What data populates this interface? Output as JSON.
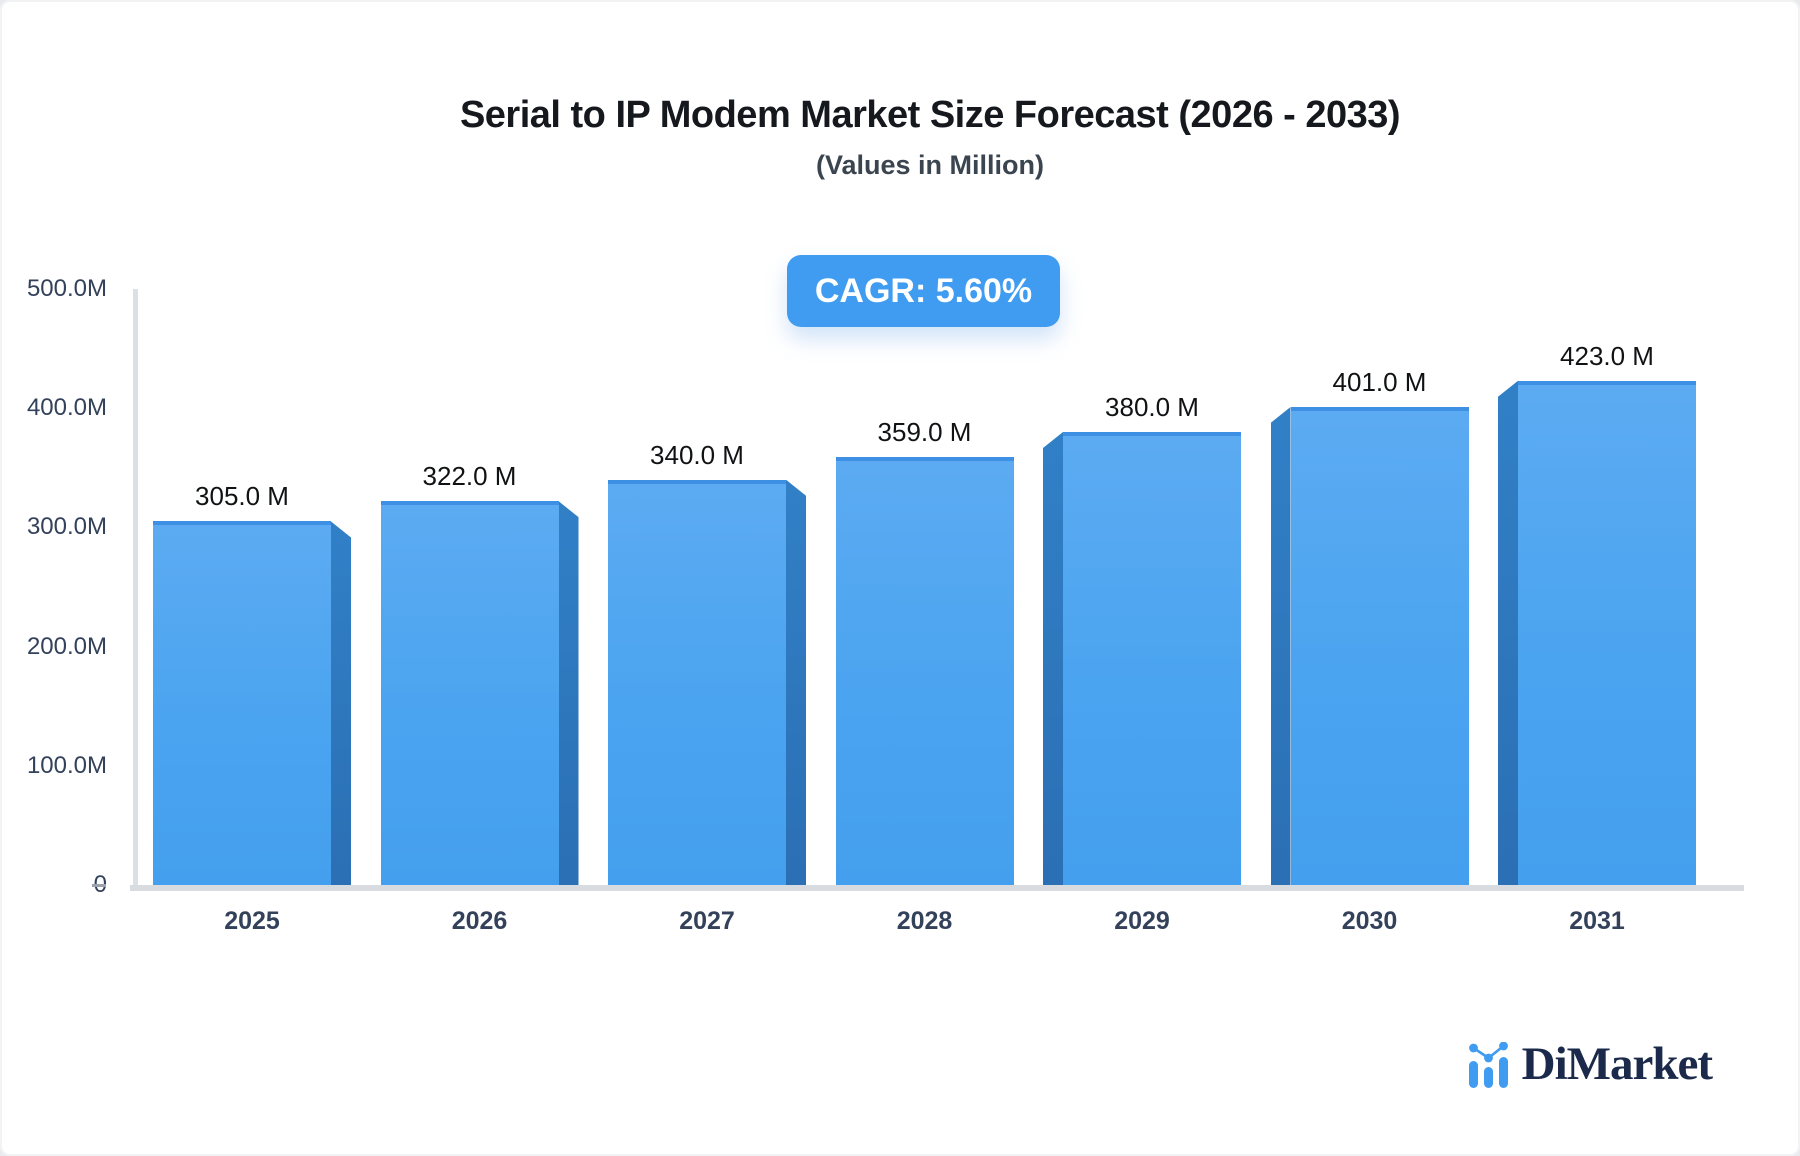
{
  "header": {
    "title": "Serial to IP Modem Market Size Forecast (2026 - 2033)",
    "subtitle": "(Values in Million)",
    "cagr_badge": "CAGR: 5.60%"
  },
  "chart_data": {
    "type": "bar",
    "title": "Serial to IP Modem Market Size Forecast (2026 - 2033)",
    "subtitle": "(Values in Million)",
    "annotation": "CAGR: 5.60%",
    "categories": [
      "2025",
      "2026",
      "2027",
      "2028",
      "2029",
      "2030",
      "2031"
    ],
    "values": [
      305,
      322,
      340,
      359,
      380,
      401,
      423
    ],
    "bar_labels": [
      "305.0 M",
      "322.0 M",
      "340.0 M",
      "359.0 M",
      "380.0 M",
      "401.0 M",
      "423.0 M"
    ],
    "y_ticks": [
      {
        "label": "500.0M",
        "value": 500
      },
      {
        "label": "400.0M",
        "value": 400
      },
      {
        "label": "300.0M",
        "value": 300
      },
      {
        "label": "200.0M",
        "value": 200
      },
      {
        "label": "100.0M",
        "value": 100
      },
      {
        "label": "0",
        "value": 0
      }
    ],
    "ylim": [
      0,
      500
    ],
    "xlabel": "",
    "ylabel": "",
    "grid": false,
    "legend": false,
    "unit": "Million"
  },
  "branding": {
    "logo_text": "DiMarket",
    "logo_icon": "bar-line-chart-icon"
  },
  "colors": {
    "bar_face_top": "#5cabf2",
    "bar_face_bottom": "#449fee",
    "bar_top_cap": "#3d90e4",
    "bar_side": "#2e76bc",
    "badge_bg": "#3f9cf0",
    "badge_text": "#ffffff",
    "axis_line": "#d9dce1",
    "tick_text": "#33415a",
    "value_text": "#101214",
    "title_text": "#15181d",
    "subtitle_text": "#3b4550",
    "logo_navy": "#1b2a4a",
    "logo_blue": "#3f9cf0"
  }
}
